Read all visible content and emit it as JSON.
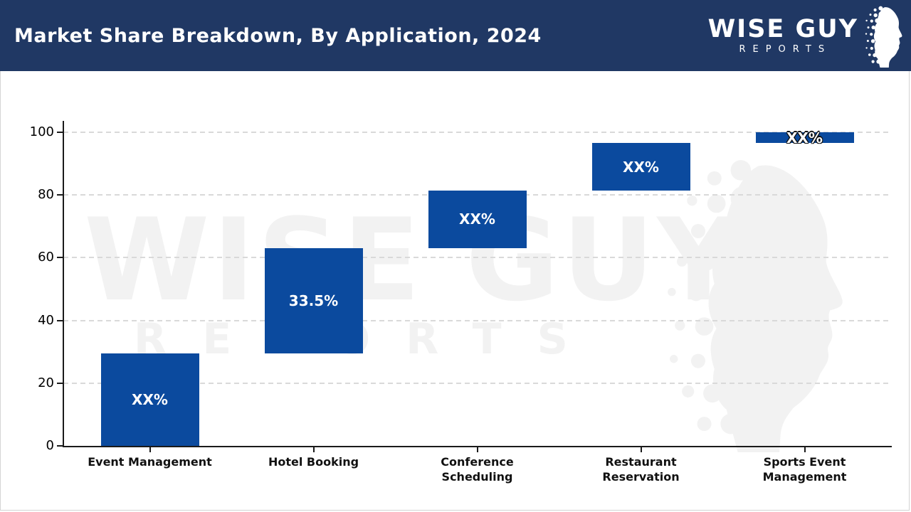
{
  "header": {
    "title": "Market Share Breakdown, By Application, 2024",
    "logo": {
      "line1": "WISE GUY",
      "line2": "REPORTS"
    }
  },
  "watermark": {
    "line1": "WISE GUY",
    "line2": "REPORTS"
  },
  "chart_data": {
    "type": "bar",
    "subtype": "waterfall-floating-segments",
    "title": "Market Share Breakdown, By Application, 2024",
    "xlabel": "",
    "ylabel": "",
    "ylim": [
      0,
      104
    ],
    "yticks": [
      0,
      20,
      40,
      60,
      80,
      100
    ],
    "grid": "horizontal-dashed",
    "legend": "none",
    "bar_color": "#0b4a9e",
    "label_color": "#ffffff",
    "categories": [
      "Event Management",
      "Hotel Booking",
      "Conference\nScheduling",
      "Restaurant\nReservation",
      "Sports Event\nManagement"
    ],
    "values": [
      29.5,
      33.5,
      18.5,
      15.0,
      3.5
    ],
    "segments": [
      {
        "category": "Event Management",
        "start": 0,
        "end": 29.5,
        "label": "XX%"
      },
      {
        "category": "Hotel Booking",
        "start": 29.5,
        "end": 63.0,
        "label": "33.5%"
      },
      {
        "category": "Conference\nScheduling",
        "start": 63.0,
        "end": 81.5,
        "label": "XX%"
      },
      {
        "category": "Restaurant\nReservation",
        "start": 81.5,
        "end": 96.5,
        "label": "XX%"
      },
      {
        "category": "Sports Event\nManagement",
        "start": 96.5,
        "end": 100.0,
        "label": "XX%"
      }
    ]
  }
}
